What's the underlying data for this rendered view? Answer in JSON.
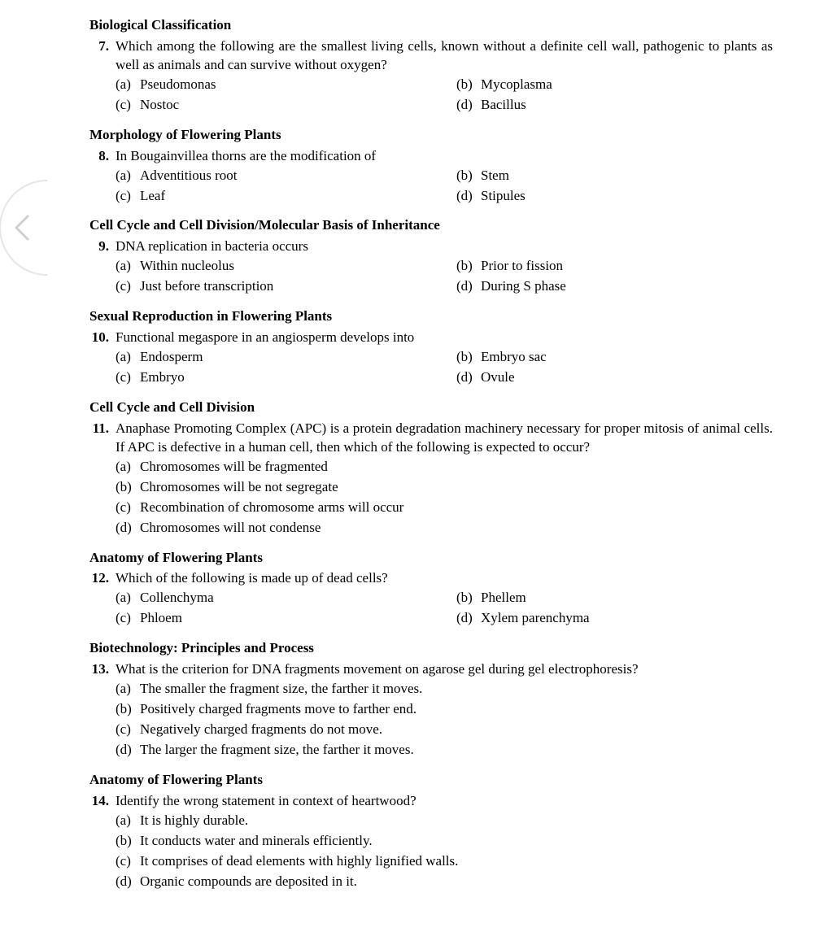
{
  "sections": [
    {
      "title": "Biological Classification",
      "question": {
        "num": "7.",
        "text": "Which among the following are the smallest living cells, known without a definite cell wall, pathogenic to plants as well as animals and can survive without oxygen?",
        "layout": "2col",
        "opts": [
          {
            "l": "(a)",
            "t": "Pseudomonas"
          },
          {
            "l": "(b)",
            "t": "Mycoplasma"
          },
          {
            "l": "(c)",
            "t": "Nostoc"
          },
          {
            "l": "(d)",
            "t": "Bacillus"
          }
        ]
      }
    },
    {
      "title": "Morphology of Flowering Plants",
      "question": {
        "num": "8.",
        "text": "In Bougainvillea thorns are the modification of",
        "layout": "2col",
        "opts": [
          {
            "l": "(a)",
            "t": "Adventitious root"
          },
          {
            "l": "(b)",
            "t": "Stem"
          },
          {
            "l": "(c)",
            "t": "Leaf"
          },
          {
            "l": "(d)",
            "t": "Stipules"
          }
        ]
      }
    },
    {
      "title": "Cell Cycle and Cell Division/Molecular Basis of Inheritance",
      "question": {
        "num": "9.",
        "text": "DNA replication in bacteria occurs",
        "layout": "2col",
        "opts": [
          {
            "l": "(a)",
            "t": "Within nucleolus"
          },
          {
            "l": "(b)",
            "t": "Prior to fission"
          },
          {
            "l": "(c)",
            "t": "Just before transcription"
          },
          {
            "l": "(d)",
            "t": "During S phase"
          }
        ]
      }
    },
    {
      "title": "Sexual Reproduction in Flowering Plants",
      "question": {
        "num": "10.",
        "text": "Functional megaspore in an angiosperm develops into",
        "layout": "2col",
        "opts": [
          {
            "l": "(a)",
            "t": "Endosperm"
          },
          {
            "l": "(b)",
            "t": "Embryo sac"
          },
          {
            "l": "(c)",
            "t": "Embryo"
          },
          {
            "l": "(d)",
            "t": "Ovule"
          }
        ]
      }
    },
    {
      "title": "Cell Cycle and Cell Division",
      "question": {
        "num": "11.",
        "text": "Anaphase Promoting Complex (APC) is a protein degradation machinery necessary for proper mitosis of animal cells. If APC is defective in a human cell, then which of the following is expected to occur?",
        "layout": "1col",
        "opts": [
          {
            "l": "(a)",
            "t": "Chromosomes will be fragmented"
          },
          {
            "l": "(b)",
            "t": "Chromosomes will be not segregate"
          },
          {
            "l": "(c)",
            "t": "Recombination of chromosome arms will occur"
          },
          {
            "l": "(d)",
            "t": "Chromosomes will not condense"
          }
        ]
      }
    },
    {
      "title": "Anatomy of Flowering Plants",
      "question": {
        "num": "12.",
        "text": "Which of the following is made up of dead cells?",
        "layout": "2col",
        "opts": [
          {
            "l": "(a)",
            "t": "Collenchyma"
          },
          {
            "l": "(b)",
            "t": "Phellem"
          },
          {
            "l": "(c)",
            "t": "Phloem"
          },
          {
            "l": "(d)",
            "t": "Xylem parenchyma"
          }
        ]
      }
    },
    {
      "title": "Biotechnology: Principles and Process",
      "question": {
        "num": "13.",
        "text": "What is the criterion for DNA fragments movement on agarose gel during gel electrophoresis?",
        "layout": "1col",
        "opts": [
          {
            "l": "(a)",
            "t": "The smaller the fragment size, the farther it moves."
          },
          {
            "l": "(b)",
            "t": "Positively charged fragments move to farther end."
          },
          {
            "l": "(c)",
            "t": "Negatively charged fragments do not move."
          },
          {
            "l": "(d)",
            "t": "The larger the fragment size, the farther it moves."
          }
        ]
      }
    },
    {
      "title": "Anatomy of Flowering Plants",
      "question": {
        "num": "14.",
        "text": "Identify the wrong statement in context of heartwood?",
        "layout": "1col",
        "opts": [
          {
            "l": "(a)",
            "t": "It is highly durable."
          },
          {
            "l": "(b)",
            "t": "It conducts water and minerals efficiently."
          },
          {
            "l": "(c)",
            "t": "It comprises of dead elements with highly lignified walls."
          },
          {
            "l": "(d)",
            "t": "Organic compounds are deposited in it."
          }
        ]
      }
    }
  ],
  "nav_arrow_color": "#d9d9d9"
}
